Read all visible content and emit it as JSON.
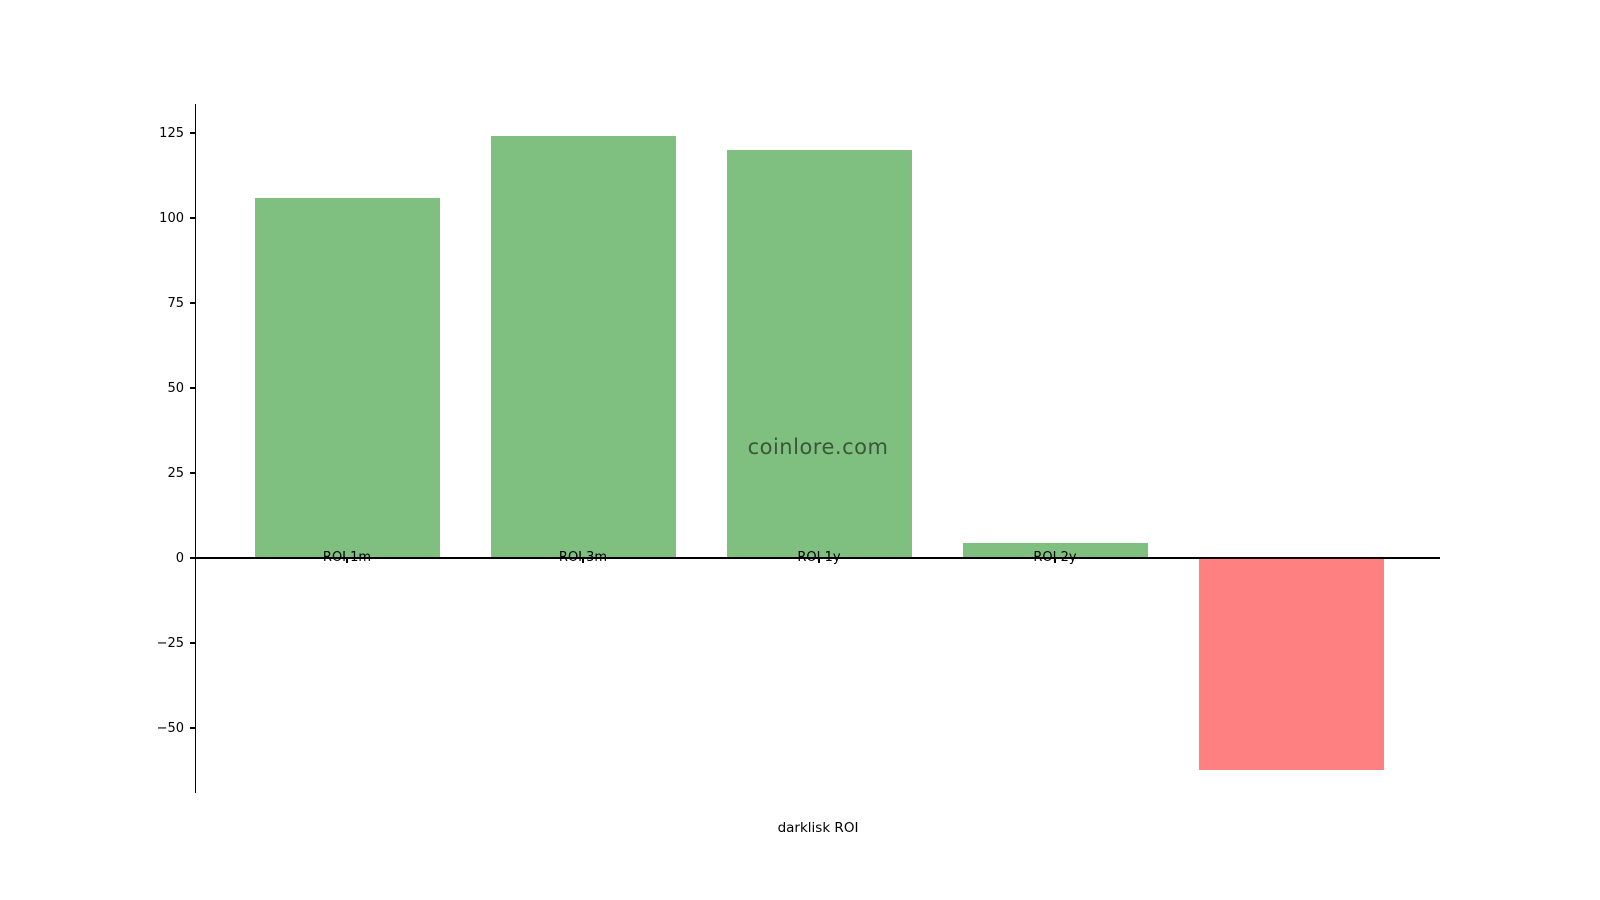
{
  "figure": {
    "background": "#ffffff"
  },
  "chart_data": {
    "type": "bar",
    "title": "",
    "xlabel": "darklisk ROI",
    "ylabel": "",
    "categories": [
      "ROI 1m",
      "ROI 3m",
      "ROI 1y",
      "ROI 2y",
      ""
    ],
    "values": [
      106,
      124,
      120,
      4.5,
      -62
    ],
    "bar_colors": [
      "#7fbf7f",
      "#7fbf7f",
      "#7fbf7f",
      "#7fbf7f",
      "#ff8080"
    ],
    "positive_color": "#7fbf7f",
    "negative_color": "#ff8080",
    "yticks": [
      125,
      100,
      75,
      50,
      25,
      0,
      -25,
      -50
    ],
    "ylim": [
      -69,
      133.5
    ],
    "grid": false,
    "legend": null,
    "axis_color": "#000000",
    "tick_label_color": "#000000",
    "watermark": "coinlore.com",
    "hidden_fifth_label": true
  }
}
